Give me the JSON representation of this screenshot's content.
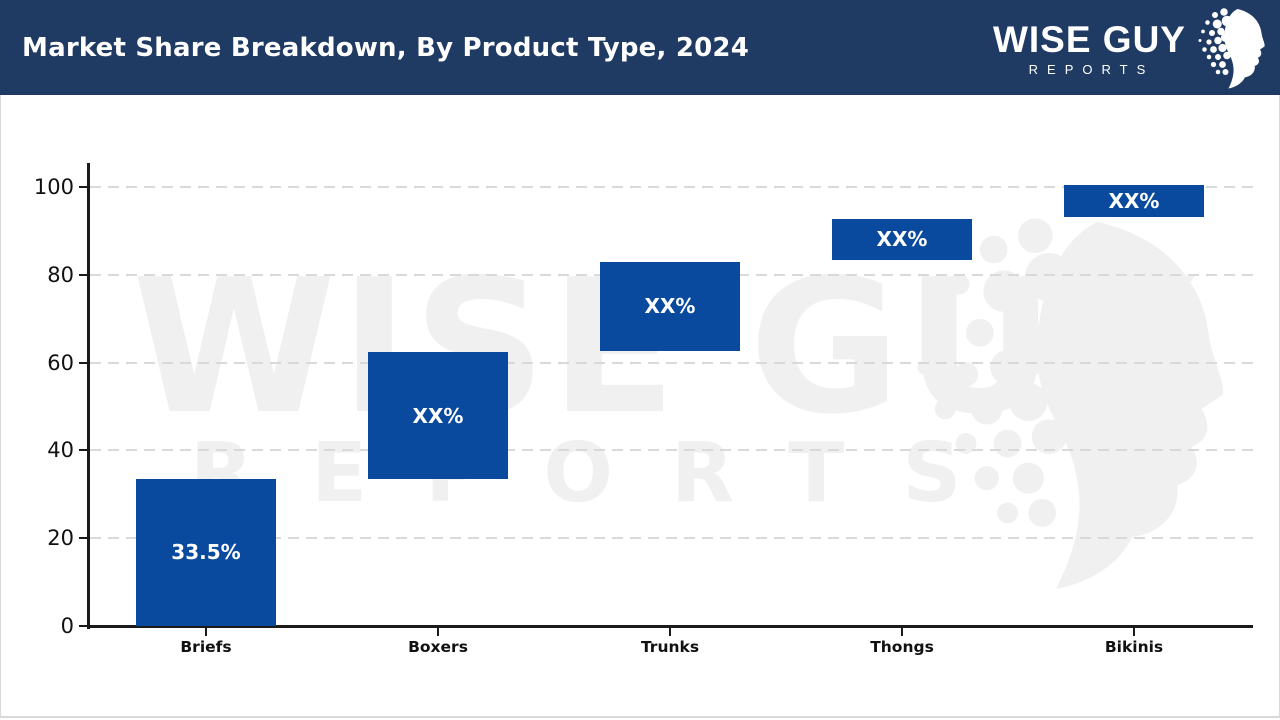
{
  "header": {
    "title": "Market Share Breakdown, By Product Type, 2024",
    "logo": {
      "line1": "WISE GUY",
      "line2": "REPORTS"
    }
  },
  "watermark": {
    "line1": "WISE GUY",
    "line2": "REPORTS"
  },
  "chart_data": {
    "type": "bar",
    "subtype": "floating-waterfall",
    "title": "Market Share Breakdown, By Product Type, 2024",
    "categories": [
      "Briefs",
      "Boxers",
      "Trunks",
      "Thongs",
      "Bikinis"
    ],
    "segments": [
      {
        "category": "Briefs",
        "start": 0,
        "end": 33.5,
        "label": "33.5%"
      },
      {
        "category": "Boxers",
        "start": 33.5,
        "end": 62.4,
        "label": "XX%"
      },
      {
        "category": "Trunks",
        "start": 62.7,
        "end": 83.0,
        "label": "XX%"
      },
      {
        "category": "Thongs",
        "start": 83.5,
        "end": 92.7,
        "label": "XX%"
      },
      {
        "category": "Bikinis",
        "start": 93.2,
        "end": 100.5,
        "label": "XX%"
      }
    ],
    "yticks": [
      0,
      20,
      40,
      60,
      80,
      100
    ],
    "ylim": [
      0,
      105.5
    ],
    "xlabel": "",
    "ylabel": "",
    "grid": "horizontal-dashed",
    "legend": "none"
  },
  "colors": {
    "header_bg": "#1f3a63",
    "bar_fill": "#0a4a9e",
    "bar_label": "#ffffff",
    "grid_line": "#d9d9d9",
    "axis_line": "#1a1a1a",
    "tick_text": "#111111",
    "watermark": "#f0f0f0",
    "title_text": "#ffffff"
  }
}
